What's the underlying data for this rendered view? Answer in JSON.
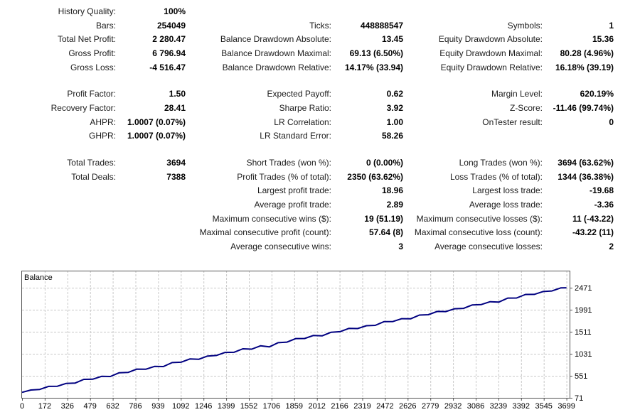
{
  "stats": {
    "sections": [
      {
        "rows": [
          [
            {
              "l": "History Quality:",
              "v": "100%"
            },
            null,
            null
          ],
          [
            {
              "l": "Bars:",
              "v": "254049"
            },
            {
              "l": "Ticks:",
              "v": "448888547"
            },
            {
              "l": "Symbols:",
              "v": "1"
            }
          ],
          [
            {
              "l": "Total Net Profit:",
              "v": "2 280.47"
            },
            {
              "l": "Balance Drawdown Absolute:",
              "v": "13.45"
            },
            {
              "l": "Equity Drawdown Absolute:",
              "v": "15.36"
            }
          ],
          [
            {
              "l": "Gross Profit:",
              "v": "6 796.94"
            },
            {
              "l": "Balance Drawdown Maximal:",
              "v": "69.13 (6.50%)"
            },
            {
              "l": "Equity Drawdown Maximal:",
              "v": "80.28 (4.96%)"
            }
          ],
          [
            {
              "l": "Gross Loss:",
              "v": "-4 516.47"
            },
            {
              "l": "Balance Drawdown Relative:",
              "v": "14.17% (33.94)"
            },
            {
              "l": "Equity Drawdown Relative:",
              "v": "16.18% (39.19)"
            }
          ]
        ]
      },
      {
        "rows": [
          [
            {
              "l": "Profit Factor:",
              "v": "1.50"
            },
            {
              "l": "Expected Payoff:",
              "v": "0.62"
            },
            {
              "l": "Margin Level:",
              "v": "620.19%"
            }
          ],
          [
            {
              "l": "Recovery Factor:",
              "v": "28.41"
            },
            {
              "l": "Sharpe Ratio:",
              "v": "3.92"
            },
            {
              "l": "Z-Score:",
              "v": "-11.46 (99.74%)"
            }
          ],
          [
            {
              "l": "AHPR:",
              "v": "1.0007 (0.07%)"
            },
            {
              "l": "LR Correlation:",
              "v": "1.00"
            },
            {
              "l": "OnTester result:",
              "v": "0"
            }
          ],
          [
            {
              "l": "GHPR:",
              "v": "1.0007 (0.07%)"
            },
            {
              "l": "LR Standard Error:",
              "v": "58.26"
            },
            null
          ]
        ]
      },
      {
        "rows": [
          [
            {
              "l": "Total Trades:",
              "v": "3694"
            },
            {
              "l": "Short Trades (won %):",
              "v": "0 (0.00%)"
            },
            {
              "l": "Long Trades (won %):",
              "v": "3694 (63.62%)"
            }
          ],
          [
            {
              "l": "Total Deals:",
              "v": "7388"
            },
            {
              "l": "Profit Trades (% of total):",
              "v": "2350 (63.62%)"
            },
            {
              "l": "Loss Trades (% of total):",
              "v": "1344 (36.38%)"
            }
          ],
          [
            null,
            {
              "l": "Largest profit trade:",
              "v": "18.96"
            },
            {
              "l": "Largest loss trade:",
              "v": "-19.68"
            }
          ],
          [
            null,
            {
              "l": "Average profit trade:",
              "v": "2.89"
            },
            {
              "l": "Average loss trade:",
              "v": "-3.36"
            }
          ],
          [
            null,
            {
              "l": "Maximum consecutive wins ($):",
              "v": "19 (51.19)"
            },
            {
              "l": "Maximum consecutive losses ($):",
              "v": "11 (-43.22)"
            }
          ],
          [
            null,
            {
              "l": "Maximal consecutive profit (count):",
              "v": "57.64 (8)"
            },
            {
              "l": "Maximal consecutive loss (count):",
              "v": "-43.22 (11)"
            }
          ],
          [
            null,
            {
              "l": "Average consecutive wins:",
              "v": "3"
            },
            {
              "l": "Average consecutive losses:",
              "v": "2"
            }
          ]
        ]
      }
    ]
  },
  "chart_data": {
    "type": "line",
    "title": "Balance",
    "xlabel": "",
    "ylabel": "",
    "grid": true,
    "legend": false,
    "x_ticks": [
      0,
      172,
      326,
      479,
      632,
      786,
      939,
      1092,
      1246,
      1399,
      1552,
      1706,
      1859,
      2012,
      2166,
      2319,
      2472,
      2626,
      2779,
      2932,
      3086,
      3239,
      3392,
      3545,
      3699
    ],
    "y_ticks": [
      71,
      551,
      1031,
      1511,
      1991,
      2471
    ],
    "xlim": [
      0,
      3720
    ],
    "ylim": [
      71,
      2843
    ],
    "series": [
      {
        "name": "Balance",
        "color": "#000080",
        "x": [
          0,
          60,
          120,
          180,
          240,
          300,
          360,
          420,
          480,
          540,
          600,
          660,
          720,
          780,
          840,
          900,
          960,
          1020,
          1080,
          1140,
          1200,
          1260,
          1320,
          1380,
          1440,
          1500,
          1560,
          1620,
          1680,
          1740,
          1800,
          1860,
          1920,
          1980,
          2040,
          2100,
          2160,
          2220,
          2280,
          2340,
          2400,
          2460,
          2520,
          2580,
          2640,
          2700,
          2760,
          2820,
          2880,
          2940,
          3000,
          3060,
          3120,
          3180,
          3240,
          3300,
          3360,
          3420,
          3480,
          3540,
          3600,
          3660,
          3699
        ],
        "y": [
          190,
          242,
          254,
          321,
          323,
          385,
          392,
          474,
          476,
          538,
          535,
          617,
          624,
          696,
          693,
          755,
          752,
          839,
          846,
          918,
          910,
          982,
          994,
          1061,
          1063,
          1140,
          1132,
          1204,
          1181,
          1273,
          1285,
          1362,
          1364,
          1431,
          1423,
          1500,
          1512,
          1584,
          1581,
          1643,
          1650,
          1732,
          1734,
          1796,
          1793,
          1875,
          1882,
          1954,
          1951,
          2013,
          2020,
          2097,
          2104,
          2166,
          2158,
          2245,
          2247,
          2324,
          2326,
          2388,
          2400,
          2467,
          2470
        ]
      }
    ]
  },
  "colors": {
    "line": "#000080",
    "grid": "#c8c8c8",
    "border": "#545454",
    "label_text": "#1b1b1b",
    "value_text": "#000000"
  }
}
